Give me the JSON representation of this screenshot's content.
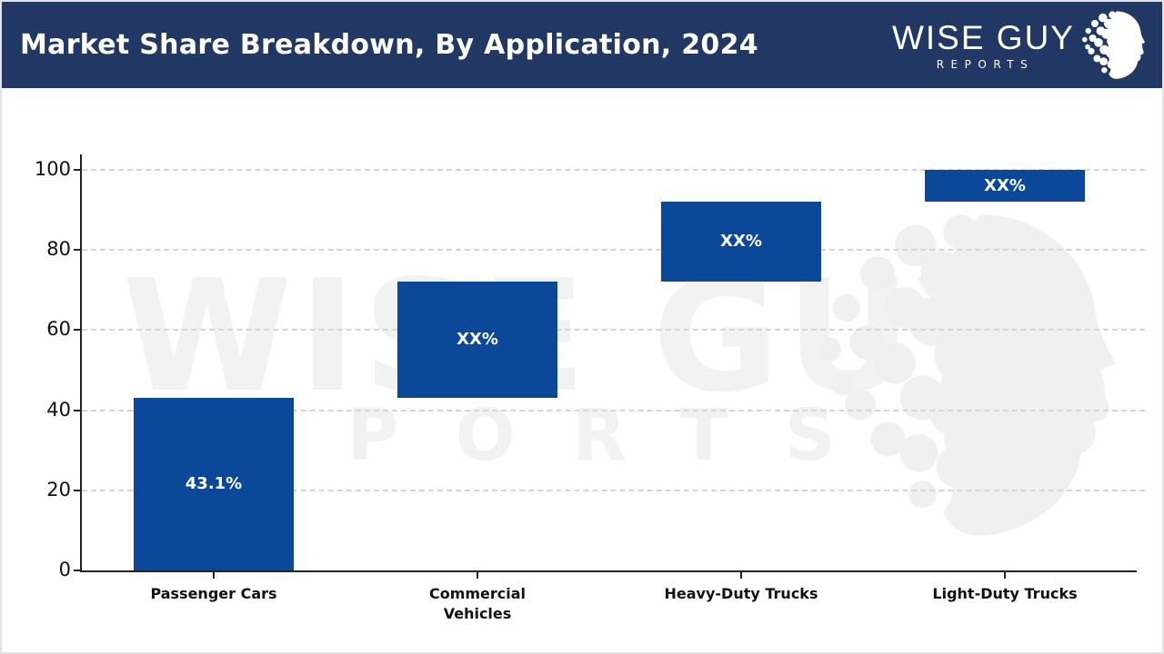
{
  "header": {
    "title": "Market Share Breakdown, By Application, 2024",
    "logo": {
      "name": "WISE GUY",
      "sub": "REPORTS"
    }
  },
  "watermark": {
    "line1": "WISE GUY",
    "line2": "REPORTS"
  },
  "chart_data": {
    "type": "bar",
    "subtype": "waterfall",
    "title": "Market Share Breakdown, By Application, 2024",
    "xlabel": "",
    "ylabel": "",
    "ylim": [
      0,
      103.5
    ],
    "yticks": [
      0,
      20,
      40,
      60,
      80,
      100
    ],
    "grid": "horizontal-dashed",
    "legend": "none",
    "categories": [
      "Passenger Cars",
      "Commercial\nVehicles",
      "Heavy-Duty Trucks",
      "Light-Duty Trucks"
    ],
    "bars": [
      {
        "category": "Passenger Cars",
        "start": 0,
        "end": 43.1,
        "value": 43.1,
        "label": "43.1%"
      },
      {
        "category": "Commercial Vehicles",
        "start": 43.1,
        "end": 72.2,
        "value": 29.1,
        "label": "XX%"
      },
      {
        "category": "Heavy-Duty Trucks",
        "start": 72.2,
        "end": 92.0,
        "value": 19.8,
        "label": "XX%"
      },
      {
        "category": "Light-Duty Trucks",
        "start": 92.0,
        "end": 100.0,
        "value": 8.0,
        "label": "XX%"
      }
    ]
  },
  "colors": {
    "header_bg": "#213864",
    "bar": "#0b4899",
    "grid": "#d5d5d5",
    "axis": "#222222",
    "title_text": "#ffffff",
    "bar_label": "#ffffff",
    "watermark": "#f2f2f2",
    "tick_text": "#111111"
  }
}
